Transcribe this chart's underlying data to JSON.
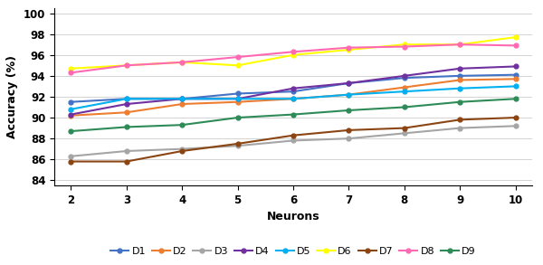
{
  "neurons": [
    2,
    3,
    4,
    5,
    6,
    7,
    8,
    9,
    10
  ],
  "series": {
    "D1": [
      91.5,
      91.8,
      91.8,
      92.3,
      92.5,
      93.3,
      93.8,
      94.0,
      94.1
    ],
    "D2": [
      90.2,
      90.5,
      91.3,
      91.5,
      91.8,
      92.2,
      92.9,
      93.6,
      93.7
    ],
    "D3": [
      86.3,
      86.8,
      87.0,
      87.3,
      87.8,
      88.0,
      88.5,
      89.0,
      89.2
    ],
    "D4": [
      90.3,
      91.3,
      91.8,
      91.8,
      92.8,
      93.3,
      94.0,
      94.7,
      94.9
    ],
    "D5": [
      90.8,
      91.8,
      91.8,
      91.8,
      91.8,
      92.2,
      92.5,
      92.8,
      93.0
    ],
    "D6": [
      94.7,
      95.0,
      95.3,
      95.0,
      96.0,
      96.5,
      97.0,
      97.0,
      97.7
    ],
    "D7": [
      85.8,
      85.8,
      86.8,
      87.5,
      88.3,
      88.8,
      89.0,
      89.8,
      90.0
    ],
    "D8": [
      94.3,
      95.0,
      95.3,
      95.8,
      96.3,
      96.7,
      96.8,
      97.0,
      96.9
    ],
    "D9": [
      88.7,
      89.1,
      89.3,
      90.0,
      90.3,
      90.7,
      91.0,
      91.5,
      91.8
    ]
  },
  "colors": {
    "D1": "#4472C4",
    "D2": "#ED7D31",
    "D3": "#A5A5A5",
    "D4": "#7030A0",
    "D5": "#00B0F0",
    "D6": "#FFFF00",
    "D7": "#8B4513",
    "D8": "#FF69B4",
    "D9": "#2E8B57"
  },
  "ylim": [
    83.5,
    100.5
  ],
  "yticks": [
    84,
    86,
    88,
    90,
    92,
    94,
    96,
    98,
    100
  ],
  "xlabel": "Neurons",
  "ylabel": "Accuracy (%)",
  "legend_order": [
    "D1",
    "D2",
    "D3",
    "D4",
    "D5",
    "D6",
    "D7",
    "D8",
    "D9"
  ]
}
